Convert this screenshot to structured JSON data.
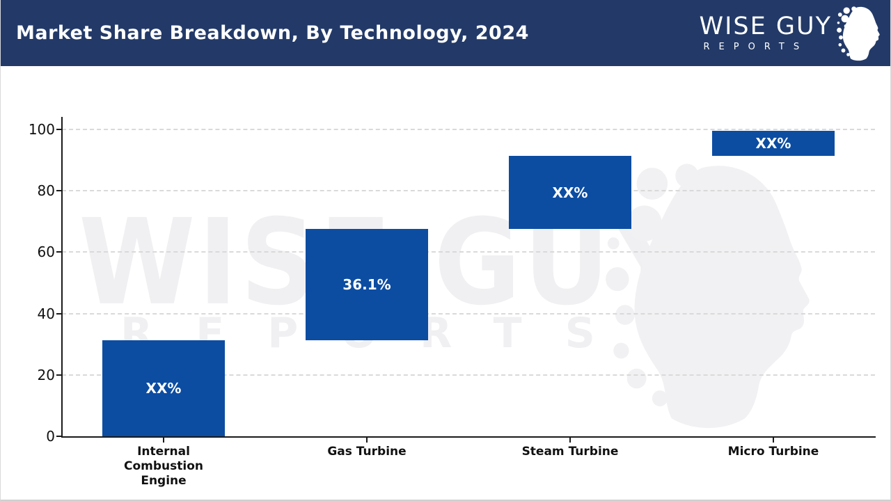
{
  "header": {
    "title": "Market Share Breakdown, By Technology, 2024",
    "logo": {
      "line1": "WISE GUY",
      "line2": "REPORTS",
      "icon": "dotted-head-profile-icon"
    }
  },
  "watermark": {
    "line1": "WISE GUY",
    "line2": "REPORTS",
    "icon": "dotted-head-profile-watermark"
  },
  "colors": {
    "header_bg": "#233a68",
    "bar_fill": "#0c4da2",
    "bar_label_text": "#ffffff",
    "title_text": "#ffffff",
    "axis": "#1a1a1a",
    "grid": "#d9d9d9",
    "watermark": "#f0f0f2",
    "background": "#ffffff"
  },
  "chart_data": {
    "type": "bar",
    "variant": "floating-segment (waterfall-style market share)",
    "title": "Market Share Breakdown, By Technology, 2024",
    "xlabel": "",
    "ylabel": "",
    "units": "%",
    "ylim": [
      0,
      104
    ],
    "yticks": [
      0,
      20,
      40,
      60,
      80,
      100
    ],
    "grid": "dashed horizontal",
    "legend": "none",
    "categories": [
      "Internal Combustion Engine",
      "Gas Turbine",
      "Steam Turbine",
      "Micro Turbine"
    ],
    "segments": [
      {
        "category": "Internal Combustion Engine",
        "start": 0,
        "end": 31.4,
        "value": 31.4,
        "label": "XX%"
      },
      {
        "category": "Gas Turbine",
        "start": 31.4,
        "end": 67.5,
        "value": 36.1,
        "label": "36.1%"
      },
      {
        "category": "Steam Turbine",
        "start": 67.5,
        "end": 91.3,
        "value": 23.8,
        "label": "XX%"
      },
      {
        "category": "Micro Turbine",
        "start": 91.3,
        "end": 99.6,
        "value": 8.3,
        "label": "XX%"
      }
    ]
  }
}
